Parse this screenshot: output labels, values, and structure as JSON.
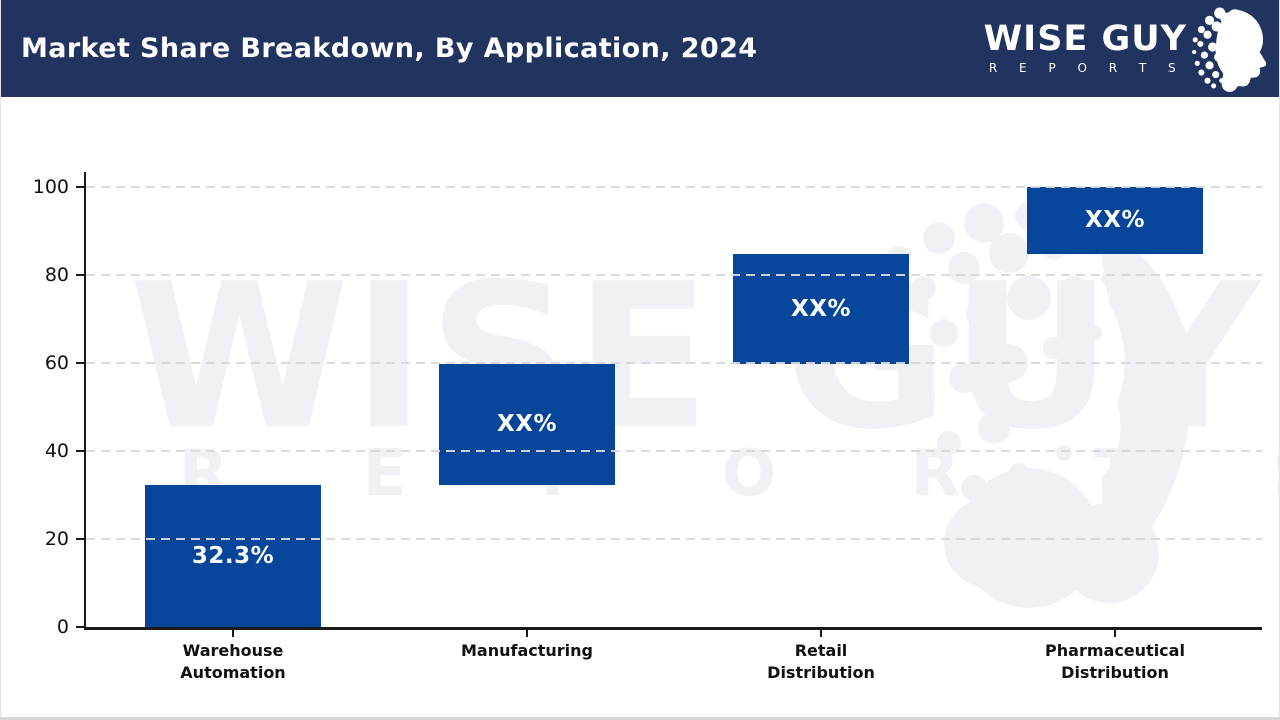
{
  "header": {
    "title": "Market Share Breakdown, By Application, 2024",
    "background_color": "#20345f",
    "logo": {
      "wordmark": "WISE GUY",
      "subtext": "R E P O R T S",
      "head_icon": "head-profile-dots-icon"
    }
  },
  "watermark": {
    "wordmark": "WISE GUY",
    "subtext": "R E P O R T S",
    "head_icon": "head-profile-dots-icon",
    "color": "#eff1f4"
  },
  "chart_data": {
    "type": "bar",
    "variant": "waterfall",
    "title": "Market Share Breakdown, By Application, 2024",
    "categories": [
      "Warehouse\nAutomation",
      "Manufacturing",
      "Retail\nDistribution",
      "Pharmaceutical\nDistribution"
    ],
    "starts": [
      0,
      32.3,
      59.8,
      84.8
    ],
    "values": [
      32.3,
      27.5,
      25.0,
      15.2
    ],
    "bar_labels": [
      "32.3%",
      "XX%",
      "XX%",
      "XX%"
    ],
    "ylim": [
      0,
      100
    ],
    "yticks": [
      0,
      20,
      40,
      60,
      80,
      100
    ],
    "grid": "horizontal-dashed",
    "legend": "none",
    "bar_color": "#05459a",
    "bar_label_color": "#ffffff",
    "axis_color": "#1a1a1a",
    "grid_color": "#d9d9d9",
    "tick_label_color": "#111111"
  }
}
